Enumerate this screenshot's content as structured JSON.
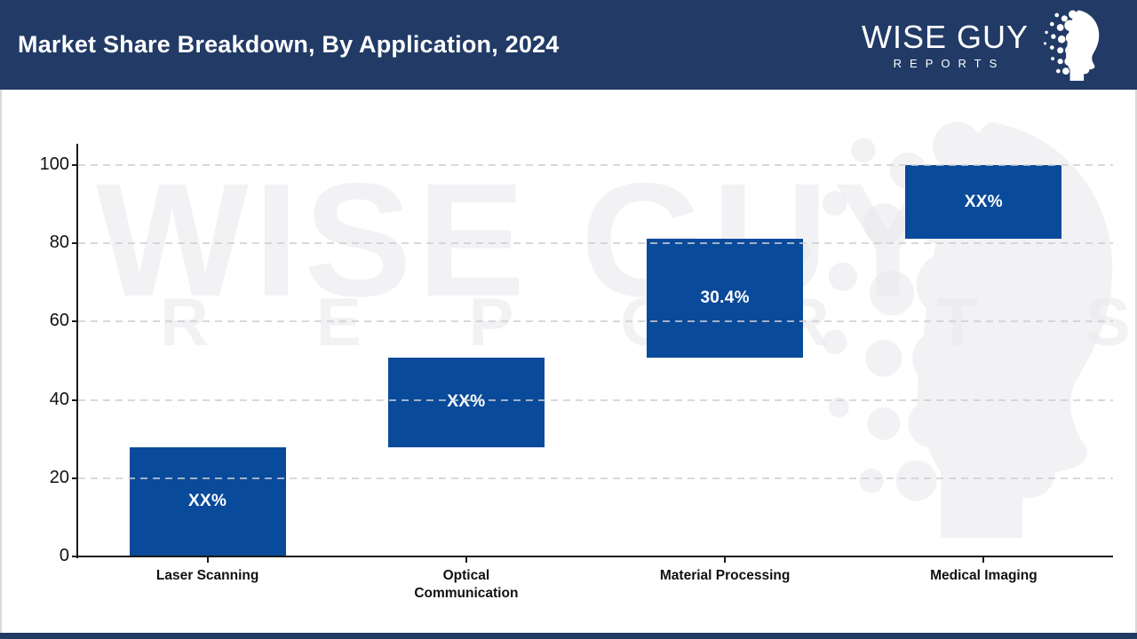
{
  "header": {
    "title": "Market Share Breakdown, By Application, 2024",
    "logo": {
      "line1": "WISE GUY",
      "line2": "REPORTS"
    }
  },
  "watermark": {
    "line1": "WISE GUY",
    "line2": "R E P O R T S"
  },
  "colors": {
    "header_bar": "#213a66",
    "footer_bar": "#213a66",
    "bar_fill": "#0a4a9a",
    "bar_label_text": "#ffffff",
    "axis_text": "#111111"
  },
  "chart_data": {
    "type": "bar",
    "subtype": "waterfall",
    "title": "Market Share Breakdown, By Application, 2024",
    "categories": [
      "Laser Scanning",
      "Optical Communication",
      "Material Processing",
      "Medical Imaging"
    ],
    "series": [
      {
        "name": "Market Share (%)",
        "segments": [
          {
            "category": "Laser Scanning",
            "start": 0,
            "end": 28.0,
            "label": "XX%"
          },
          {
            "category": "Optical Communication",
            "start": 28.0,
            "end": 50.7,
            "label": "XX%"
          },
          {
            "category": "Material Processing",
            "start": 50.7,
            "end": 81.1,
            "label": "30.4%"
          },
          {
            "category": "Medical Imaging",
            "start": 81.1,
            "end": 100.0,
            "label": "XX%"
          }
        ]
      }
    ],
    "xlabel": "",
    "ylabel": "",
    "yticks": [
      0,
      20,
      40,
      60,
      80,
      100
    ],
    "ylim": [
      0,
      105
    ],
    "grid": "dashed horizontal",
    "legend": "none"
  }
}
